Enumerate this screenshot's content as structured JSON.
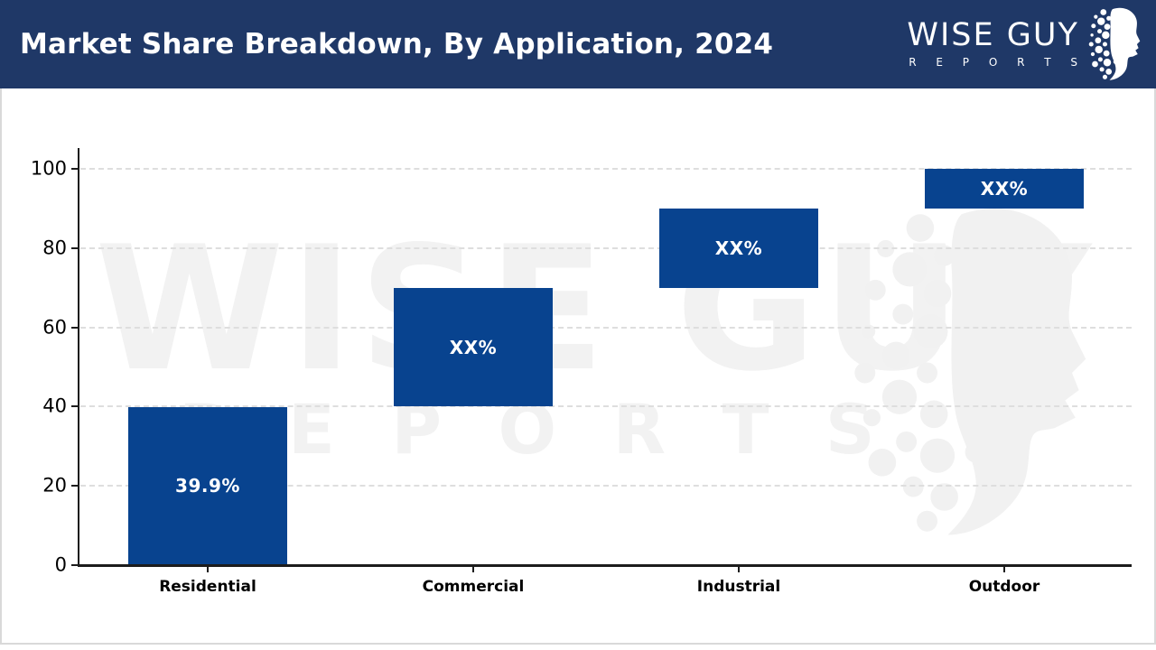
{
  "header": {
    "title": "Market Share Breakdown, By Application, 2024",
    "logo": {
      "wordmark": "WISE GUY",
      "subtext": "R E P O R T S"
    }
  },
  "watermark": {
    "line1": "WISE GUY",
    "line2": "R E P O R T S"
  },
  "chart_data": {
    "type": "bar",
    "variant": "waterfall",
    "title": "Market Share Breakdown, By Application, 2024",
    "categories": [
      "Residential",
      "Commercial",
      "Industrial",
      "Outdoor"
    ],
    "segments": [
      {
        "category": "Residential",
        "start": 0,
        "end": 39.9,
        "label": "39.9%"
      },
      {
        "category": "Commercial",
        "start": 40,
        "end": 70,
        "label": "XX%"
      },
      {
        "category": "Industrial",
        "start": 70,
        "end": 90,
        "label": "XX%"
      },
      {
        "category": "Outdoor",
        "start": 90,
        "end": 100,
        "label": "XX%"
      }
    ],
    "yticks": [
      0,
      20,
      40,
      60,
      80,
      100
    ],
    "ylim": [
      0,
      105
    ],
    "xlabel": "",
    "ylabel": "",
    "grid": "horizontal-dashed",
    "legend": "none",
    "bar_color": "#08438f",
    "bar_label_color": "#ffffff",
    "axis_color": "#1c1c1c",
    "gridline_color": "#dedede"
  },
  "colors": {
    "header_bg": "#1f3867",
    "page_bg": "#ffffff",
    "watermark": "#f2f2f2",
    "frame_border": "#d9d9d9"
  }
}
